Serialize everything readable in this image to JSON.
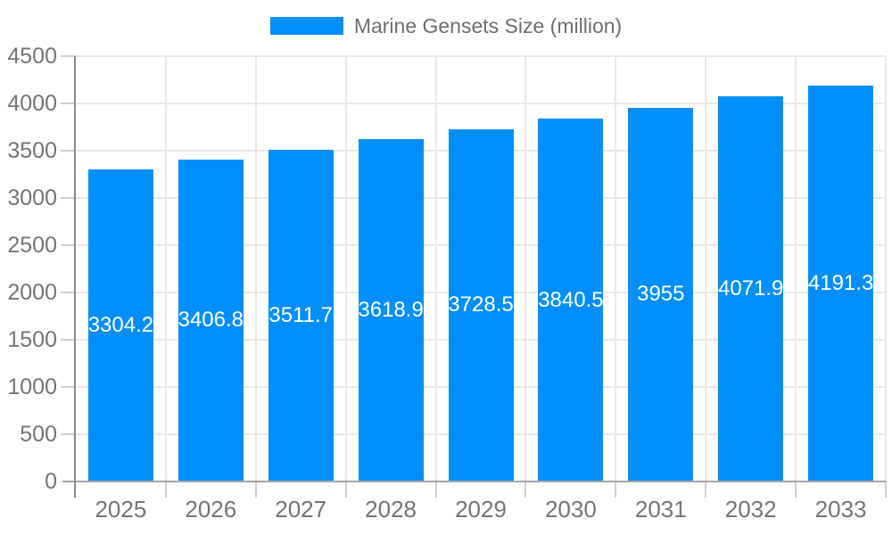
{
  "chart_data": {
    "type": "bar",
    "title": "Marine Gensets Size (million)",
    "categories": [
      "2025",
      "2026",
      "2027",
      "2028",
      "2029",
      "2030",
      "2031",
      "2032",
      "2033"
    ],
    "values": [
      3304.2,
      3406.8,
      3511.7,
      3618.9,
      3728.5,
      3840.5,
      3955,
      4071.9,
      4191.3
    ],
    "value_labels": [
      "3304.2",
      "3406.8",
      "3511.7",
      "3618.9",
      "3728.5",
      "3840.5",
      "3955",
      "4071.9",
      "4191.3"
    ],
    "xlabel": "",
    "ylabel": "",
    "ylim": [
      0,
      4500
    ],
    "y_ticks": [
      0,
      500,
      1000,
      1500,
      2000,
      2500,
      3000,
      3500,
      4000,
      4500
    ],
    "grid": true,
    "legend_position": "top",
    "colors": {
      "bar": "#008FFB",
      "gridline": "#e8e8e8",
      "tick": "#cfcfcf",
      "axis_label": "#757575",
      "value_label": "#ffffff",
      "legend_label": "#6e6e6e",
      "axis_line_x": "#a6a6a6",
      "axis_line_y": "#8a8a8a"
    }
  }
}
